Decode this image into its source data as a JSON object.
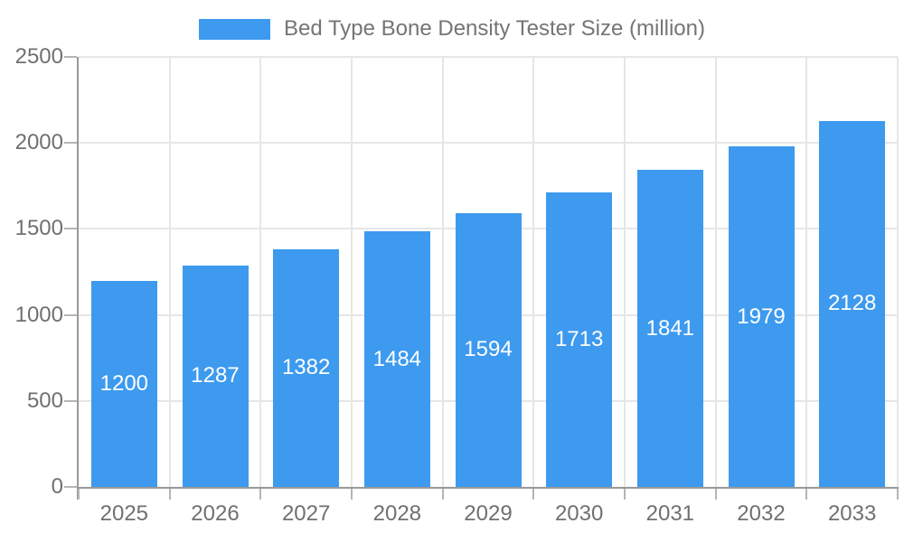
{
  "legend": {
    "label": "Bed Type Bone Density Tester Size (million)"
  },
  "chart_data": {
    "type": "bar",
    "title": "Bed Type Bone Density Tester Size (million)",
    "categories": [
      "2025",
      "2026",
      "2027",
      "2028",
      "2029",
      "2030",
      "2031",
      "2032",
      "2033"
    ],
    "values": [
      1200,
      1287,
      1382,
      1484,
      1594,
      1713,
      1841,
      1979,
      2128
    ],
    "series": [
      {
        "name": "Bed Type Bone Density Tester Size (million)",
        "values": [
          1200,
          1287,
          1382,
          1484,
          1594,
          1713,
          1841,
          1979,
          2128
        ]
      }
    ],
    "xlabel": "",
    "ylabel": "",
    "ylim": [
      0,
      2500
    ],
    "yticks": [
      0,
      500,
      1000,
      1500,
      2000,
      2500
    ],
    "grid": true,
    "legend_position": "top",
    "value_labels": "inside-center",
    "colors": {
      "bar": "#3D9AEE",
      "value_label": "#FFFFFF",
      "axis": "#999999",
      "tick": "#B5B5B5",
      "grid": "#E6E6E6",
      "tick_label": "#707070",
      "legend_text": "#757575"
    }
  }
}
